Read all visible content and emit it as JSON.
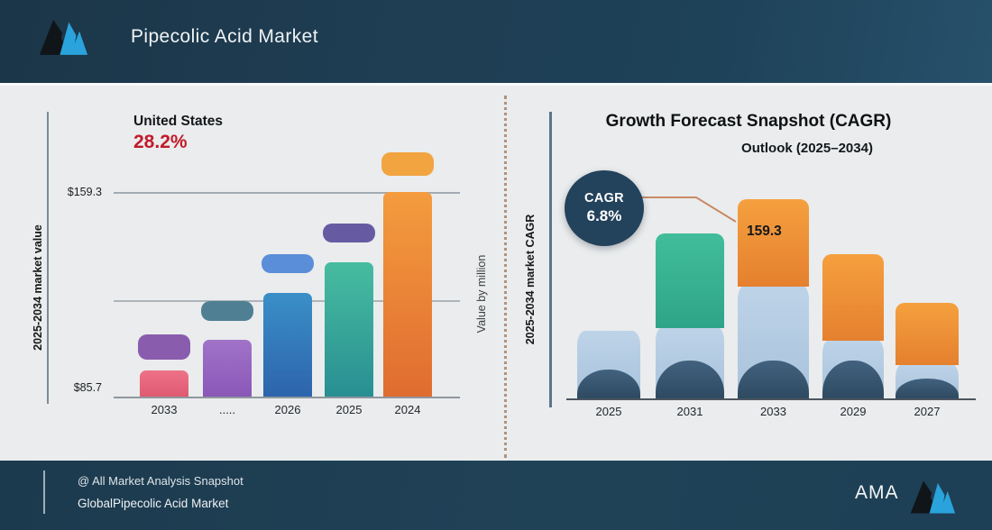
{
  "header": {
    "title": "Pipecolic Acid Market",
    "logo": "ama-logo"
  },
  "footer": {
    "line1": "@ All Market Analysis Snapshot",
    "line2": "GlobalPipecolic Acid Market",
    "brand": "AMA"
  },
  "colors": {
    "header_bg": "#1f3d53",
    "panel_bg": "#eaeced",
    "accent_red": "#c21a2a",
    "badge_navy": "#23425b",
    "connector_tan": "#c98a64",
    "divider_dot": "#a9846b",
    "logo_blue": "#2aa3dc",
    "logo_black": "#10151a",
    "left_bar_gradients": [
      [
        "#ee7287",
        "#df5a71"
      ],
      [
        "#a073c8",
        "#8a58b8"
      ],
      [
        "#3a8fc8",
        "#2d64ac"
      ],
      [
        "#47bca0",
        "#288f92"
      ],
      [
        "#f49c3e",
        "#e06c30"
      ]
    ],
    "left_cap_colors": [
      "#8a5cae",
      "#4f7f93",
      "#5a8ed9",
      "#665aa3",
      "#f2a441"
    ],
    "right_base_gradient": [
      "#42627f",
      "#2e4a61"
    ],
    "right_mid_gradient": [
      "#bdd3e8",
      "#a9c3db"
    ],
    "right_top_colors": {
      "teal": [
        "#41bd9b",
        "#2fa488"
      ],
      "orange": [
        "#f5a03e",
        "#e5802f"
      ]
    }
  },
  "chart_data": [
    {
      "type": "bar",
      "panel": "left",
      "title": "United States",
      "highlight": "28.2%",
      "ylabel": "2025-2034 market value",
      "ylabel_secondary": "Value by million",
      "categories": [
        "2033",
        ".....",
        "2026",
        "2025",
        "2024"
      ],
      "values": [
        95,
        106,
        123,
        134,
        159.3
      ],
      "cap_ranges": [
        [
          99,
          108
        ],
        [
          113,
          120
        ],
        [
          130,
          137
        ],
        [
          141,
          148
        ],
        [
          165,
          173.5
        ]
      ],
      "yticks": [
        {
          "label": "$85.7",
          "value": 85.7
        },
        {
          "label": "$159.3",
          "value": 159.3
        }
      ],
      "ylim": [
        85.7,
        178
      ],
      "units": "USD million (estimated from axis)",
      "grid": true
    },
    {
      "type": "stacked-bar",
      "panel": "right",
      "title": "Growth Forecast Snapshot (CAGR)",
      "subtitle": "Outlook (2025–2034)",
      "badge": {
        "label": "CAGR",
        "value": "6.8%"
      },
      "annotation": {
        "text": "159.3",
        "category": "2033"
      },
      "ylabel": "2025-2034 market CAGR",
      "categories": [
        "2025",
        "2031",
        "2033",
        "2029",
        "2027"
      ],
      "series": [
        {
          "name": "base",
          "values": [
            14.5,
            19,
            19,
            19,
            10
          ]
        },
        {
          "name": "mid",
          "values": [
            19.5,
            17.2,
            38,
            10.9,
            7.7
          ]
        },
        {
          "name": "top",
          "values": [
            0,
            46.6,
            43,
            42.5,
            30.3
          ]
        }
      ],
      "top_styles": [
        null,
        "teal",
        "orange",
        "orange",
        "orange"
      ],
      "units": "percent of tallest bar (no numeric axis shown)",
      "grid": false
    }
  ]
}
